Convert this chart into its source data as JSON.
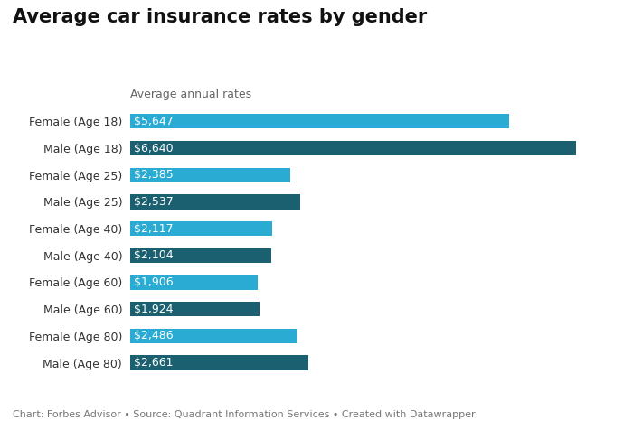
{
  "title": "Average car insurance rates by gender",
  "subtitle": "Average annual rates",
  "categories": [
    "Female (Age 18)",
    "Male (Age 18)",
    "Female (Age 25)",
    "Male (Age 25)",
    "Female (Age 40)",
    "Male (Age 40)",
    "Female (Age 60)",
    "Male (Age 60)",
    "Female (Age 80)",
    "Male (Age 80)"
  ],
  "values": [
    5647,
    6640,
    2385,
    2537,
    2117,
    2104,
    1906,
    1924,
    2486,
    2661
  ],
  "labels": [
    "$5,647",
    "$6,640",
    "$2,385",
    "$2,537",
    "$2,117",
    "$2,104",
    "$1,906",
    "$1,924",
    "$2,486",
    "$2,661"
  ],
  "colors": [
    "#29ABD4",
    "#1A6070",
    "#29ABD4",
    "#1A6070",
    "#29ABD4",
    "#1A6070",
    "#29ABD4",
    "#1A6070",
    "#29ABD4",
    "#1A6070"
  ],
  "footer": "Chart: Forbes Advisor • Source: Quadrant Information Services • Created with Datawrapper",
  "xlim": [
    0,
    7200
  ],
  "background_color": "#ffffff",
  "title_fontsize": 15,
  "subtitle_fontsize": 9,
  "label_fontsize": 9,
  "tick_fontsize": 9,
  "footer_fontsize": 8
}
